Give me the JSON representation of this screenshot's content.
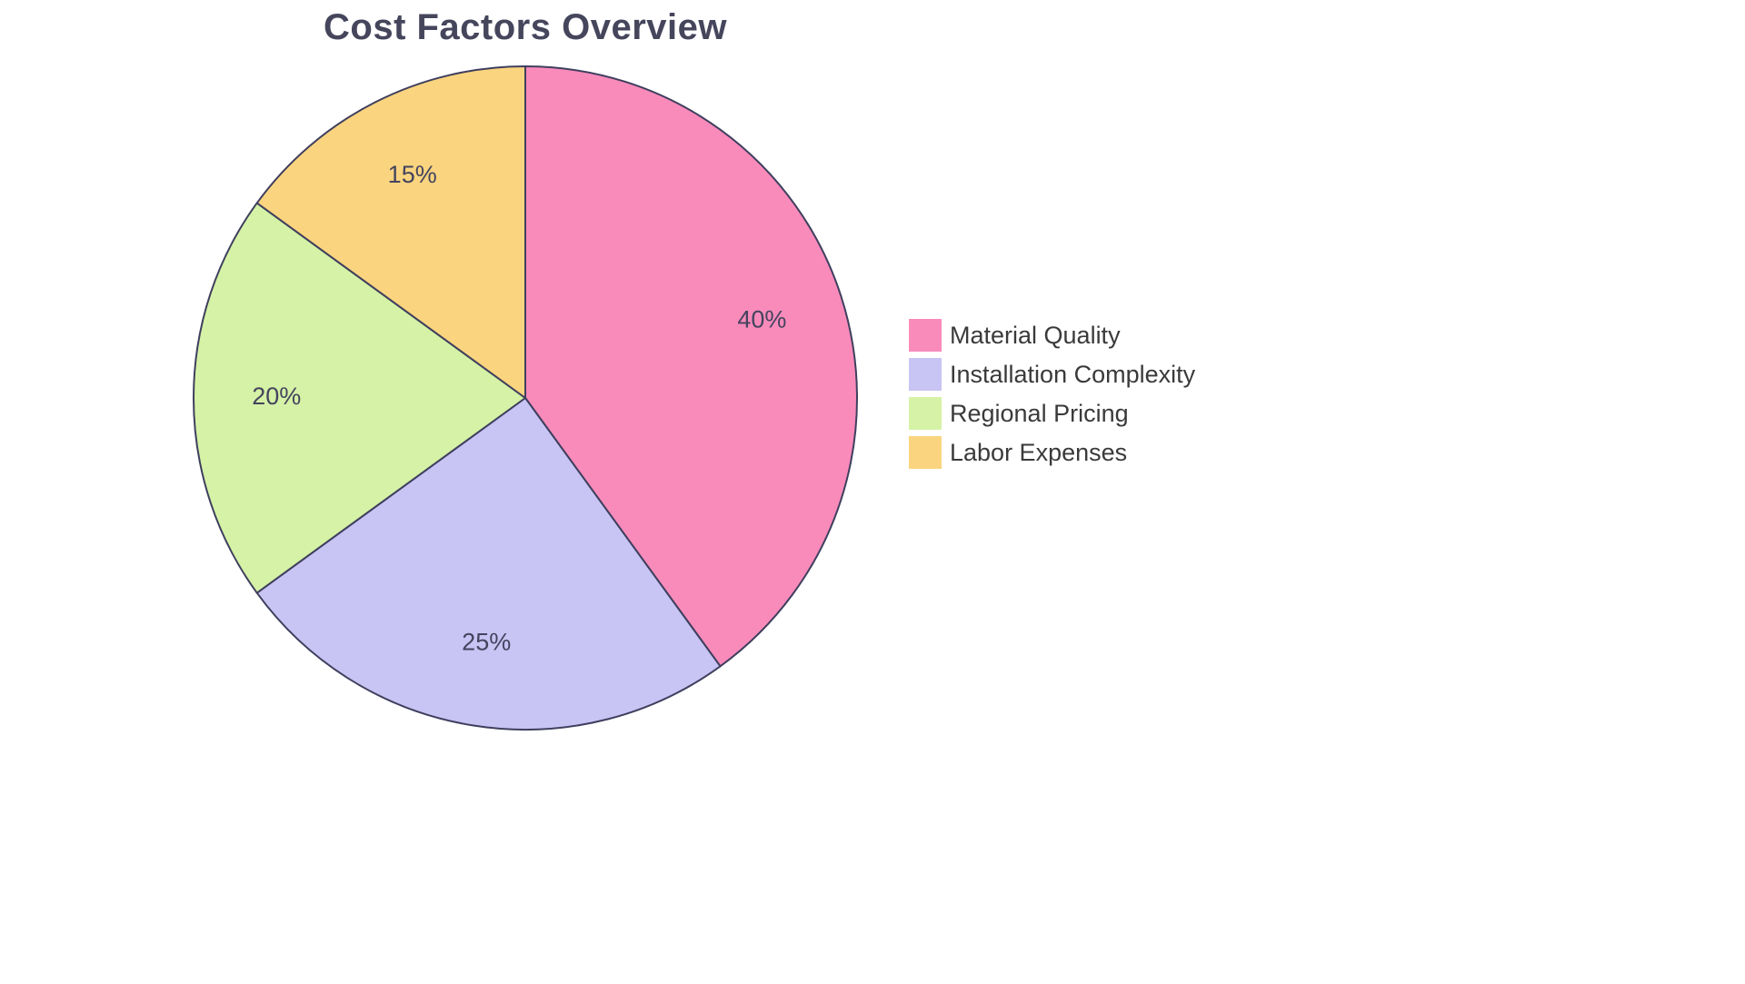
{
  "title": "Cost Factors Overview",
  "chart_data": {
    "type": "pie",
    "title": "Cost Factors Overview",
    "labels": [
      "Material Quality",
      "Installation Complexity",
      "Regional Pricing",
      "Labor Expenses"
    ],
    "values": [
      40,
      25,
      20,
      15
    ],
    "value_labels": [
      "40%",
      "25%",
      "20%",
      "15%"
    ],
    "colors": [
      "#F98BBB",
      "#C8C4F4",
      "#D5F2A6",
      "#FAD47F"
    ],
    "start_angle_deg": 0,
    "direction": "clockwise",
    "slice_stroke": "#3F3F5E",
    "slice_stroke_width": 2,
    "label_color": "#44445E",
    "title_color": "#45465C",
    "legend_position": "right",
    "legend_text_color": "#3A3A3A",
    "background": "#FFFFFF"
  }
}
